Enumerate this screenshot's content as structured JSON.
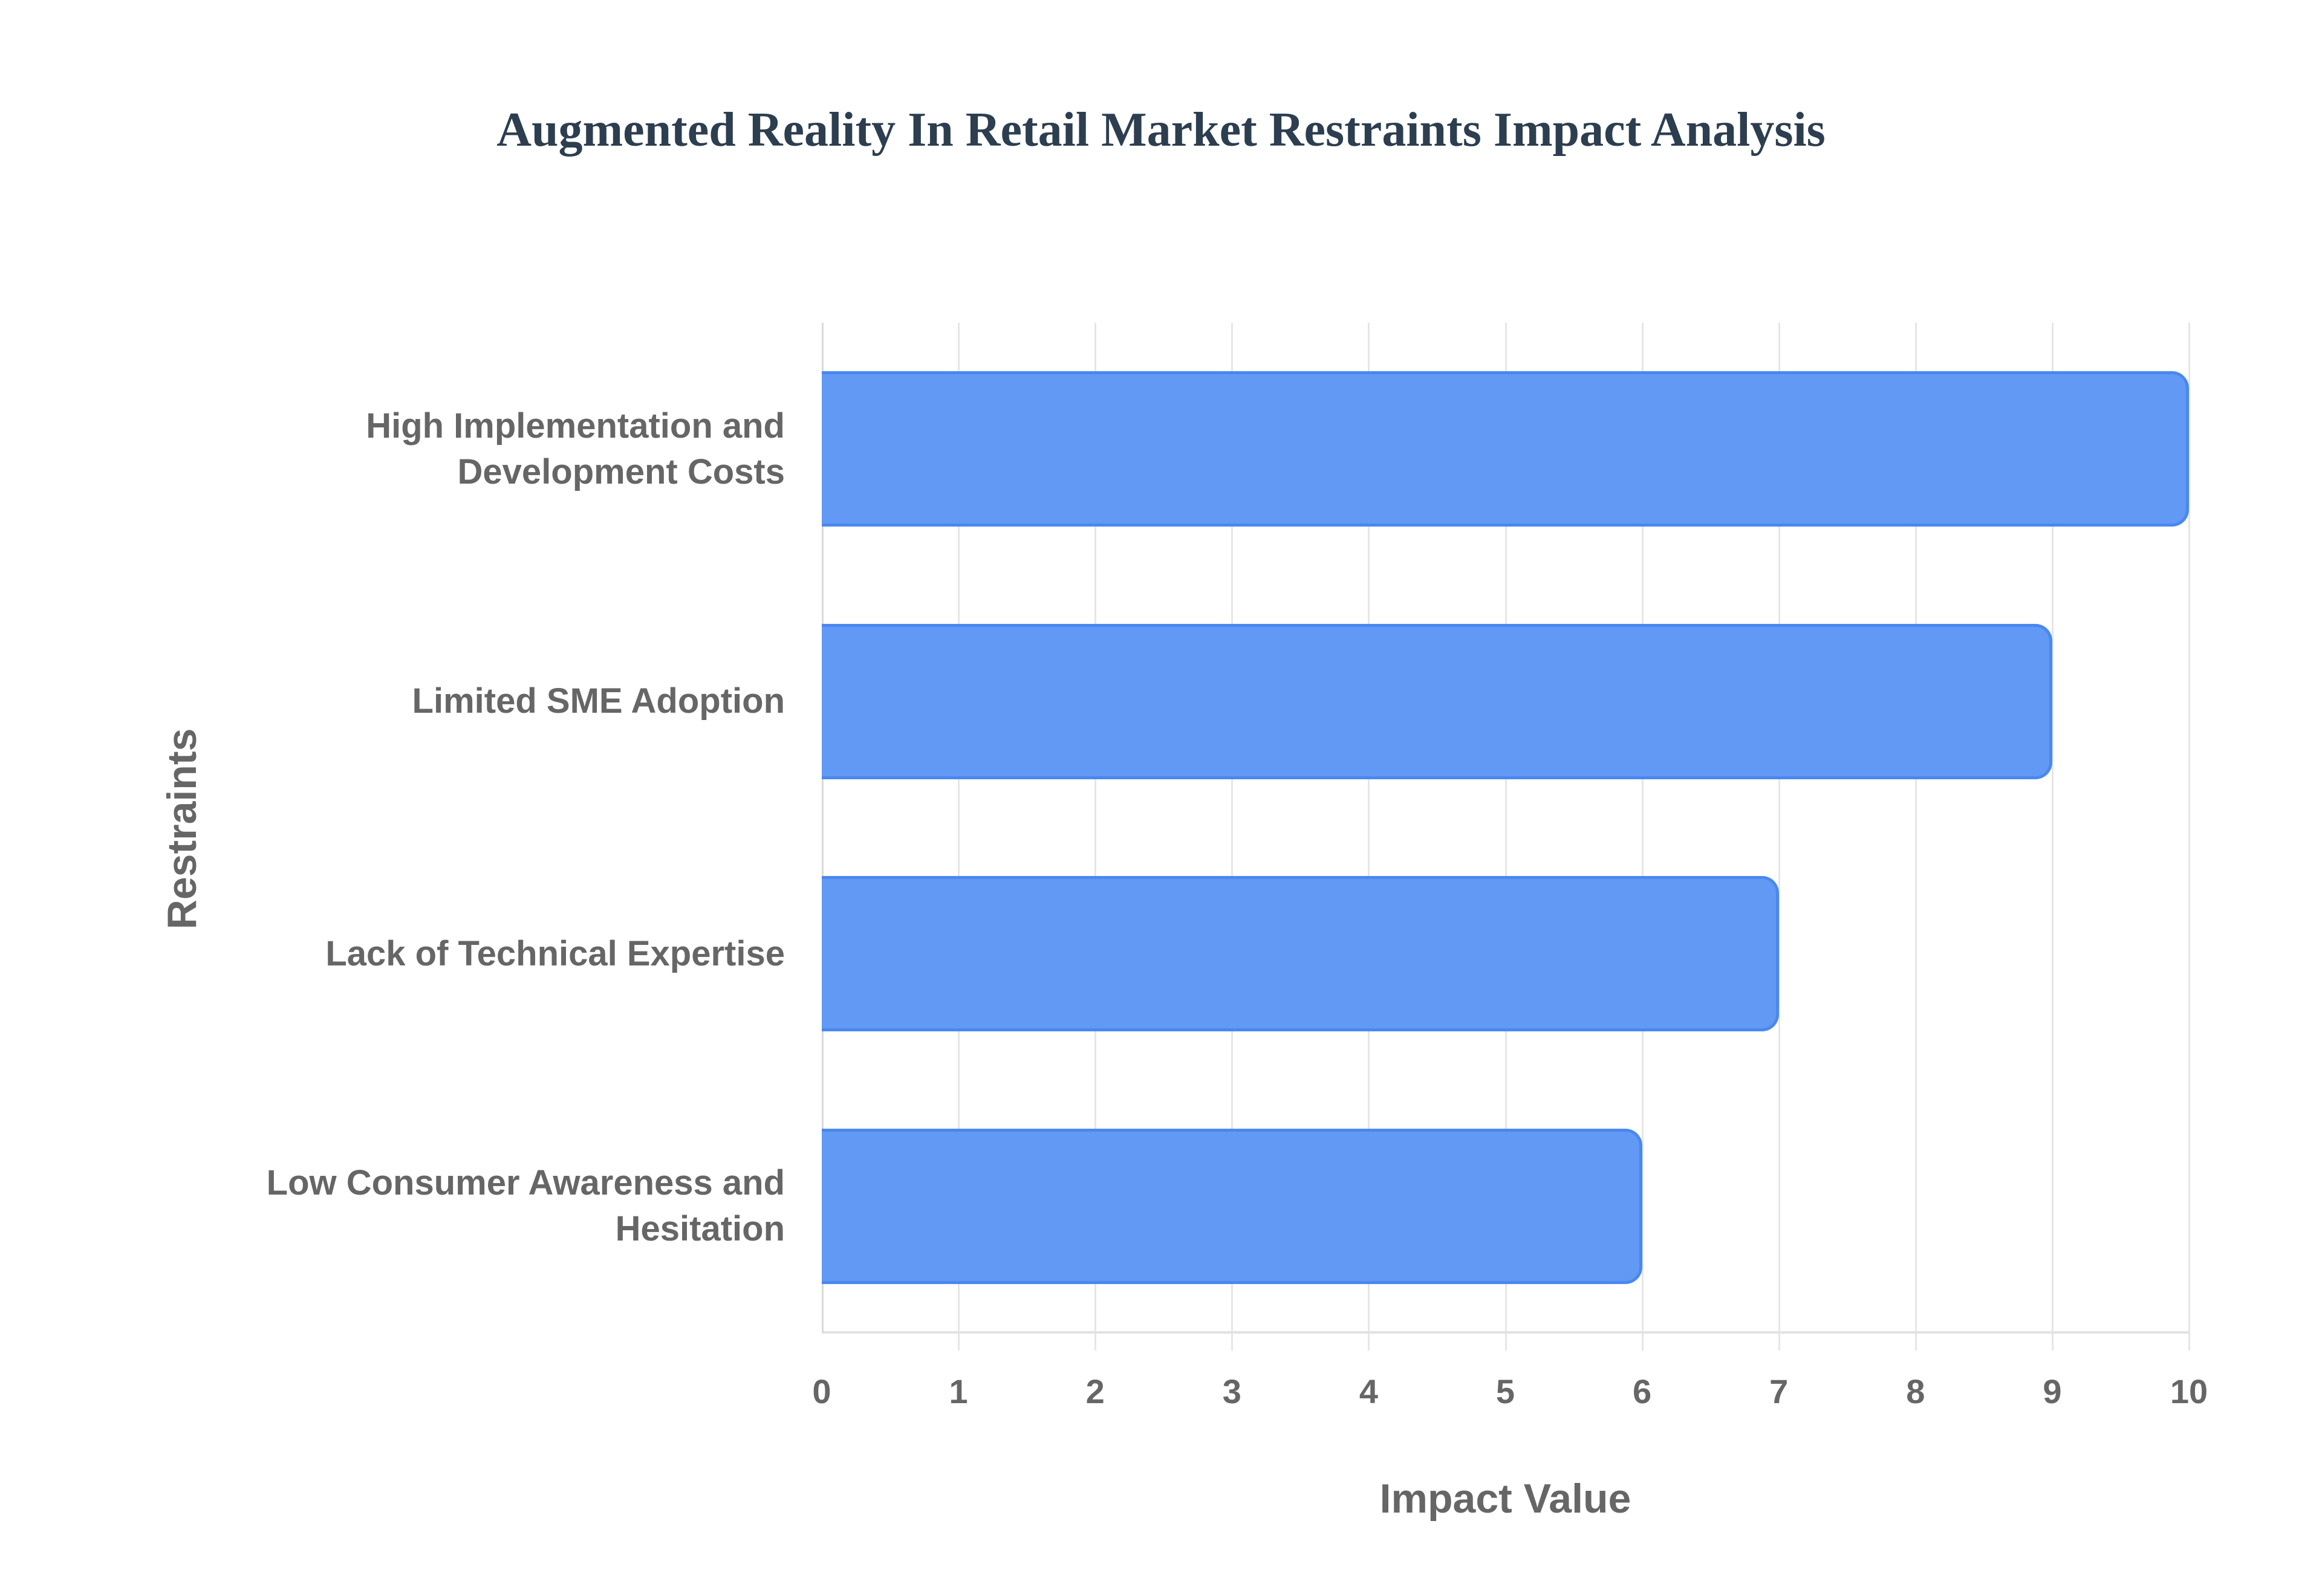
{
  "chart_data": {
    "type": "bar",
    "orientation": "horizontal",
    "title": "Augmented Reality In Retail Market Restraints Impact Analysis",
    "xlabel": "Impact Value",
    "ylabel": "Restraints",
    "categories": [
      "High Implementation and Development Costs",
      "Limited SME Adoption",
      "Lack of Technical Expertise",
      "Low Consumer Awareness and Hesitation"
    ],
    "category_lines": [
      [
        "High Implementation and",
        "Development Costs"
      ],
      [
        "Limited SME Adoption"
      ],
      [
        "Lack of Technical Expertise"
      ],
      [
        "Low Consumer Awareness and",
        "Hesitation"
      ]
    ],
    "values": [
      10,
      9,
      7,
      6
    ],
    "xlim": [
      0,
      10
    ],
    "x_ticks": [
      "0",
      "1",
      "2",
      "3",
      "4",
      "5",
      "6",
      "7",
      "8",
      "9",
      "10"
    ],
    "grid": true,
    "legend": "none",
    "colors": {
      "bar_fill": "#6299f4",
      "bar_border": "#4a88f0",
      "title": "#2c3e50",
      "text": "#666666",
      "grid": "#e6e6e6"
    }
  }
}
